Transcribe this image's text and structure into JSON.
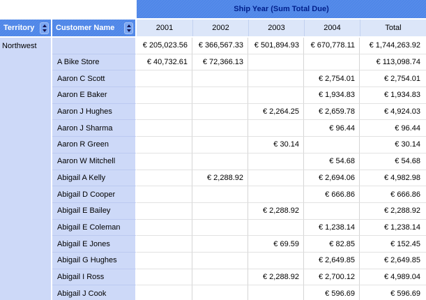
{
  "banner": {
    "title": "Ship Year (Sum Total Due)"
  },
  "columns": {
    "territory": "Territory",
    "customer_name": "Customer Name",
    "years": [
      "2001",
      "2002",
      "2003",
      "2004"
    ],
    "total": "Total"
  },
  "colors": {
    "header_blue": "#4e86e8",
    "banner_text_navy": "#001f8b",
    "year_row_bg": "#dce6f9",
    "row_header_bg": "#cdd9f8"
  },
  "icons": {
    "sort": "up-down-sort-arrows"
  },
  "rows": [
    {
      "territory": "Northwest",
      "customer": "",
      "values": [
        "€ 205,023.56",
        "€ 366,567.33",
        "€ 501,894.93",
        "€ 670,778.11",
        "€ 1,744,263.92"
      ]
    },
    {
      "territory": "",
      "customer": "A Bike Store",
      "values": [
        "€ 40,732.61",
        "€ 72,366.13",
        "",
        "",
        "€ 113,098.74"
      ]
    },
    {
      "territory": "",
      "customer": "Aaron C Scott",
      "values": [
        "",
        "",
        "",
        "€ 2,754.01",
        "€ 2,754.01"
      ]
    },
    {
      "territory": "",
      "customer": "Aaron E Baker",
      "values": [
        "",
        "",
        "",
        "€ 1,934.83",
        "€ 1,934.83"
      ]
    },
    {
      "territory": "",
      "customer": "Aaron J Hughes",
      "values": [
        "",
        "",
        "€ 2,264.25",
        "€ 2,659.78",
        "€ 4,924.03"
      ]
    },
    {
      "territory": "",
      "customer": "Aaron J Sharma",
      "values": [
        "",
        "",
        "",
        "€ 96.44",
        "€ 96.44"
      ]
    },
    {
      "territory": "",
      "customer": "Aaron R Green",
      "values": [
        "",
        "",
        "€ 30.14",
        "",
        "€ 30.14"
      ]
    },
    {
      "territory": "",
      "customer": "Aaron W Mitchell",
      "values": [
        "",
        "",
        "",
        "€ 54.68",
        "€ 54.68"
      ]
    },
    {
      "territory": "",
      "customer": "Abigail A Kelly",
      "values": [
        "",
        "€ 2,288.92",
        "",
        "€ 2,694.06",
        "€ 4,982.98"
      ]
    },
    {
      "territory": "",
      "customer": "Abigail D Cooper",
      "values": [
        "",
        "",
        "",
        "€ 666.86",
        "€ 666.86"
      ]
    },
    {
      "territory": "",
      "customer": "Abigail E Bailey",
      "values": [
        "",
        "",
        "€ 2,288.92",
        "",
        "€ 2,288.92"
      ]
    },
    {
      "territory": "",
      "customer": "Abigail E Coleman",
      "values": [
        "",
        "",
        "",
        "€ 1,238.14",
        "€ 1,238.14"
      ]
    },
    {
      "territory": "",
      "customer": "Abigail E Jones",
      "values": [
        "",
        "",
        "€ 69.59",
        "€ 82.85",
        "€ 152.45"
      ]
    },
    {
      "territory": "",
      "customer": "Abigail G Hughes",
      "values": [
        "",
        "",
        "",
        "€ 2,649.85",
        "€ 2,649.85"
      ]
    },
    {
      "territory": "",
      "customer": "Abigail I Ross",
      "values": [
        "",
        "",
        "€ 2,288.92",
        "€ 2,700.12",
        "€ 4,989.04"
      ]
    },
    {
      "territory": "",
      "customer": "Abigail J Cook",
      "values": [
        "",
        "",
        "",
        "€ 596.69",
        "€ 596.69"
      ]
    }
  ]
}
